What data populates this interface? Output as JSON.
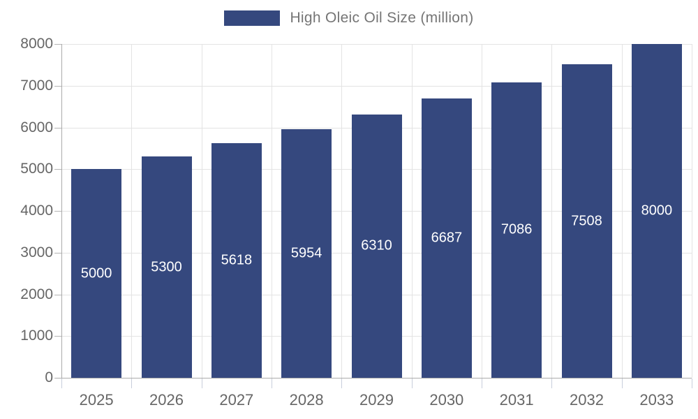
{
  "legend": {
    "label": "High Oleic Oil Size (million)"
  },
  "chart_data": {
    "type": "bar",
    "title": "",
    "xlabel": "",
    "ylabel": "",
    "categories": [
      "2025",
      "2026",
      "2027",
      "2028",
      "2029",
      "2030",
      "2031",
      "2032",
      "2033"
    ],
    "series": [
      {
        "name": "High Oleic Oil Size (million)",
        "values": [
          5000,
          5300,
          5618,
          5954,
          6310,
          6687,
          7086,
          7508,
          8000
        ]
      }
    ],
    "value_labels_shown": true,
    "value_label_position": "center-of-bar",
    "ylim": [
      0,
      8000
    ],
    "yticks": [
      0,
      1000,
      2000,
      3000,
      4000,
      5000,
      6000,
      7000,
      8000
    ],
    "grid": true,
    "legend_position": "top-center"
  },
  "colors": {
    "bar": "#35487E",
    "value_label": "#ffffff",
    "gridline": "#e3e3e3",
    "axis_line": "#ababab",
    "y_tick": "#b4b4b4",
    "x_tick": "#c8cedb",
    "tick_label_text": "#666666",
    "legend_text": "#757575",
    "background": "#ffffff"
  }
}
